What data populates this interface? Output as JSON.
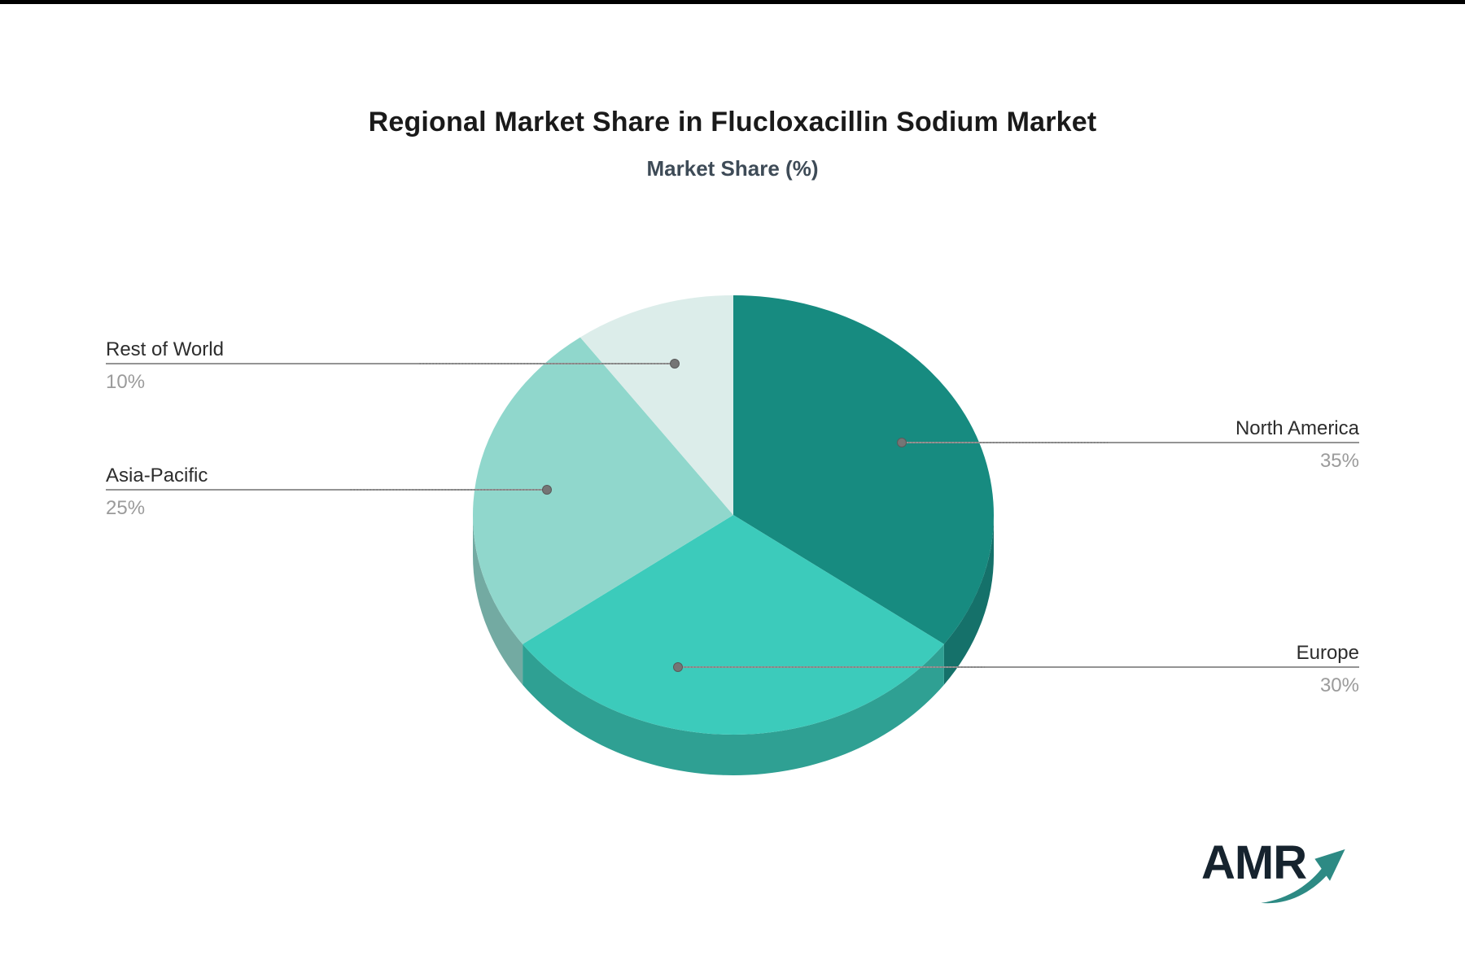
{
  "page": {
    "top_border_color": "#000000",
    "background_color": "#ffffff"
  },
  "chart_data": {
    "type": "pie",
    "title": "Regional Market Share in Flucloxacillin Sodium Market",
    "subtitle": "Market Share (%)",
    "unit": "%",
    "effect": "3d",
    "start_angle": "top",
    "direction": "clockwise",
    "legend_position": "callout-labels",
    "series": [
      {
        "label": "North America",
        "value": 35,
        "display": "35%",
        "color": "#178B80",
        "side_color": "#15716A",
        "callout_side": "right"
      },
      {
        "label": "Europe",
        "value": 30,
        "display": "30%",
        "color": "#3CCBBB",
        "side_color": "#2FA093",
        "callout_side": "right"
      },
      {
        "label": "Asia-Pacific",
        "value": 25,
        "display": "25%",
        "color": "#90D7CC",
        "side_color": "#73AAA2",
        "callout_side": "left"
      },
      {
        "label": "Rest of World",
        "value": 10,
        "display": "10%",
        "color": "#DCEDEA",
        "side_color": "#B9D6D2",
        "callout_side": "left"
      }
    ],
    "callout_style": {
      "line_color": "#949494",
      "dot_color": "#757575",
      "dot_ring_color": "#5a5a5a",
      "name_color": "#2d2d2d",
      "value_color": "#9b9b9b"
    }
  },
  "logo": {
    "text": "AMR",
    "arrow_icon": "up-right-swoosh-arrow",
    "text_color": "#16232e",
    "arrow_color": "#2d8a84"
  }
}
